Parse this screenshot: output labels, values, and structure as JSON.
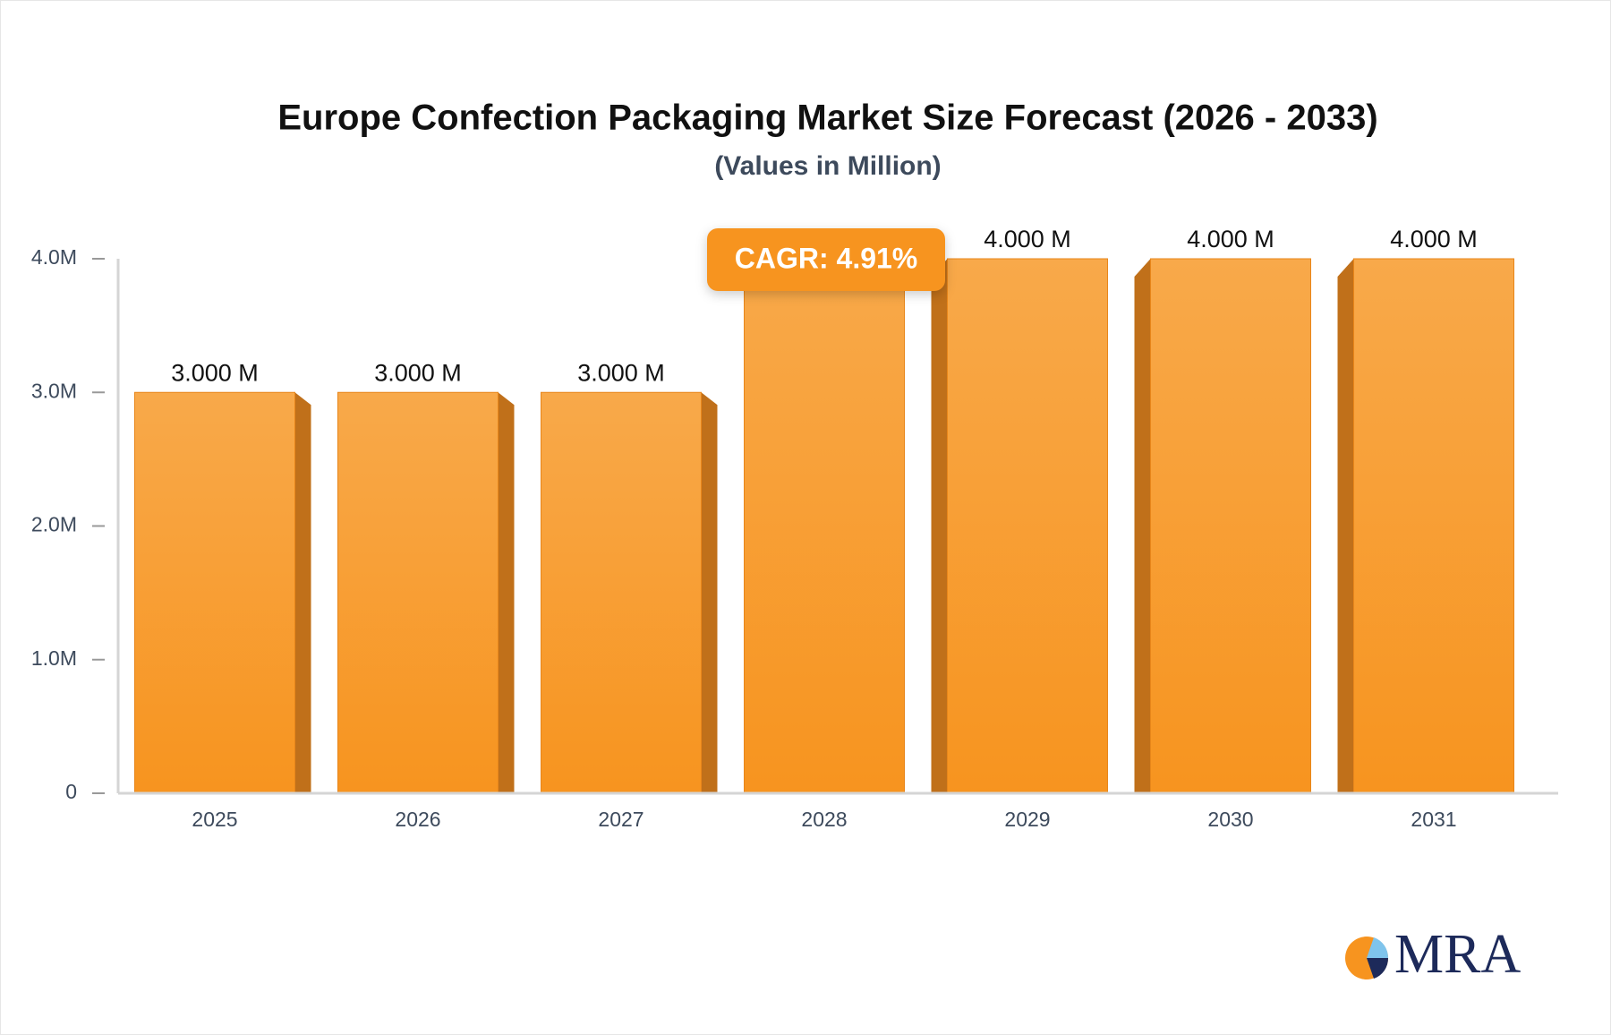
{
  "chart_data": {
    "type": "bar",
    "title": "Europe Confection Packaging Market Size Forecast (2026 - 2033)",
    "subtitle": "(Values in Million)",
    "categories": [
      "2025",
      "2026",
      "2027",
      "2028",
      "2029",
      "2030",
      "2031"
    ],
    "values": [
      3,
      3,
      3,
      4,
      4,
      4,
      4
    ],
    "value_labels": [
      "3.000 M",
      "3.000 M",
      "3.000 M",
      null,
      "4.000 M",
      "4.000 M",
      "4.000 M"
    ],
    "color": "#f7941f",
    "ylim": [
      0,
      4
    ],
    "yticks": [
      0,
      {
        "value": 1,
        "label": "1.0M"
      },
      {
        "value": 2,
        "label": "2.0M"
      },
      {
        "value": 3,
        "label": "3.0M"
      },
      {
        "value": 4,
        "label": "4.0M"
      }
    ],
    "grid": false,
    "annotation": "CAGR: 4.91%"
  },
  "logo": "MRA"
}
